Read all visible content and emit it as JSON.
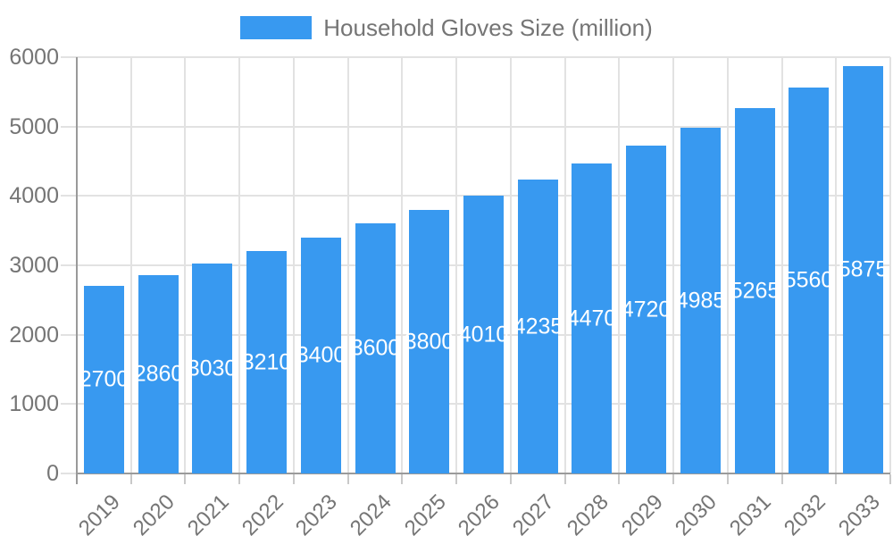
{
  "legend": {
    "label": "Household Gloves Size (million)"
  },
  "colors": {
    "bar": "#3899f0",
    "bar_label": "#ffffff",
    "axis_line": "#9a9a9a",
    "grid_line": "#e2e2e2",
    "tick_line": "#c9c9c9",
    "label_text": "#757575"
  },
  "chart_data": {
    "type": "bar",
    "title": "Household Gloves Size (million)",
    "series_name": "Household Gloves Size (million)",
    "categories": [
      "2019",
      "2020",
      "2021",
      "2022",
      "2023",
      "2024",
      "2025",
      "2026",
      "2027",
      "2028",
      "2029",
      "2030",
      "2031",
      "2032",
      "2033"
    ],
    "values": [
      2700,
      2860,
      3030,
      3210,
      3400,
      3600,
      3800,
      4010,
      4235,
      4470,
      4720,
      4985,
      5265,
      5560,
      5875
    ],
    "xlabel": "",
    "ylabel": "",
    "ylim": [
      0,
      6000
    ],
    "y_ticks": [
      0,
      1000,
      2000,
      3000,
      4000,
      5000,
      6000
    ],
    "grid": true,
    "legend_position": "top",
    "value_labels": "white, centered inside bars",
    "x_label_rotation_deg": -45
  }
}
